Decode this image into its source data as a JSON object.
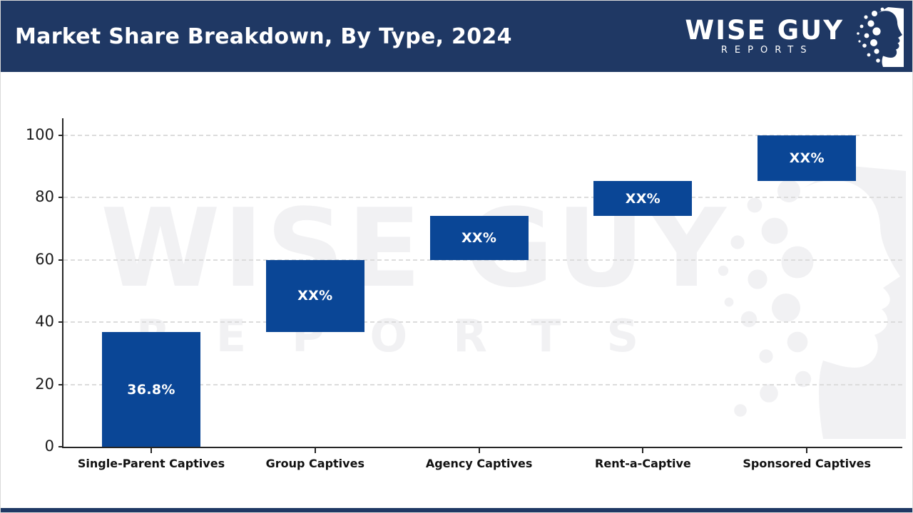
{
  "header": {
    "title": "Market Share Breakdown, By Type, 2024",
    "logo_line1": "WISE GUY",
    "logo_line2": "REPORTS"
  },
  "watermark": {
    "line1": "WISE GUY",
    "line2": "REPORTS"
  },
  "colors": {
    "header_navy": "#1f3864",
    "bar_blue": "#0a4696",
    "footer_navy": "#1f3864",
    "watermark_gray": "#f1f1f3"
  },
  "chart_data": {
    "type": "bar",
    "subtype": "waterfall",
    "title": "Market Share Breakdown, By Type, 2024",
    "categories": [
      "Single-Parent Captives",
      "Group Captives",
      "Agency Captives",
      "Rent-a-Captive",
      "Sponsored Captives"
    ],
    "segments": [
      {
        "category": "Single-Parent Captives",
        "start": 0,
        "end": 36.8,
        "label": "36.8%"
      },
      {
        "category": "Group Captives",
        "start": 36.8,
        "end": 60,
        "label": "XX%"
      },
      {
        "category": "Agency Captives",
        "start": 60,
        "end": 74,
        "label": "XX%"
      },
      {
        "category": "Rent-a-Captive",
        "start": 74,
        "end": 85.2,
        "label": "XX%"
      },
      {
        "category": "Sponsored Captives",
        "start": 85.2,
        "end": 100,
        "label": "XX%"
      }
    ],
    "y_ticks": [
      "0",
      "20",
      "40",
      "60",
      "80",
      "100"
    ],
    "y_tick_values": [
      0,
      20,
      40,
      60,
      80,
      100
    ],
    "ylim": [
      0,
      100
    ],
    "xlabel": "",
    "ylabel": "",
    "grid": "horizontal-dashed",
    "legend": "none"
  }
}
